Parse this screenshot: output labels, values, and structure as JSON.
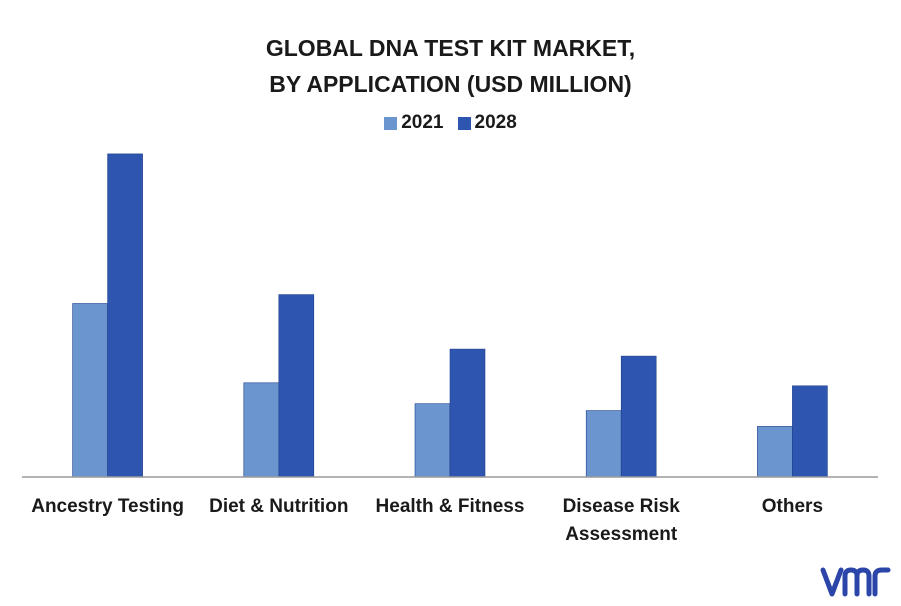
{
  "chart_data": {
    "type": "bar",
    "title_lines": [
      "GLOBAL DNA TEST KIT MARKET,",
      "BY APPLICATION (USD MILLION)"
    ],
    "categories": [
      "Ancestry Testing",
      "Diet & Nutrition",
      "Health & Fitness",
      "Disease Risk\nAssessment",
      "Others"
    ],
    "category_lines": [
      [
        "Ancestry Testing"
      ],
      [
        "Diet & Nutrition"
      ],
      [
        "Health & Fitness"
      ],
      [
        "Disease Risk",
        "Assessment"
      ],
      [
        "Others"
      ]
    ],
    "series": [
      {
        "name": "2021",
        "color": "#6a95cf",
        "values": [
          175,
          95,
          74,
          67,
          51
        ]
      },
      {
        "name": "2028",
        "color": "#2e55b0",
        "values": [
          326,
          184,
          129,
          122,
          92
        ]
      }
    ],
    "ylim": [
      0,
      340
    ],
    "grid": false,
    "legend_position": "top-center"
  },
  "logo": {
    "text": "vmr",
    "color": "#2b45a8"
  }
}
